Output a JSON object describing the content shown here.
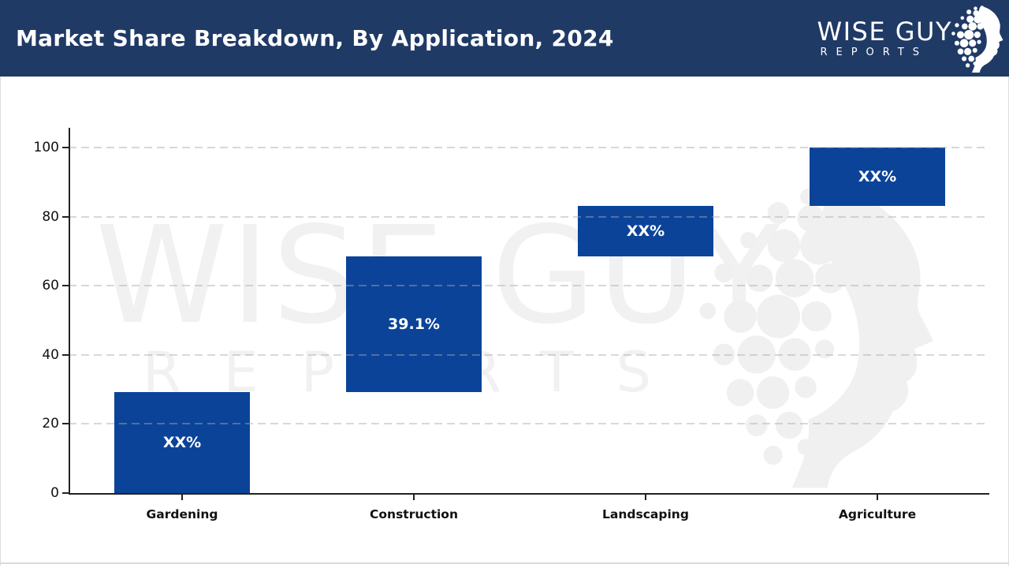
{
  "header": {
    "title": "Market Share Breakdown, By Application, 2024",
    "bg_color": "#203a66",
    "logo": {
      "line1": "WISE GUY",
      "line2": "REPORTS"
    }
  },
  "watermark": {
    "line1": "WISE GUY",
    "line2": "REPORTS"
  },
  "chart_data": {
    "type": "bar",
    "subtype": "stacked-waterfall",
    "title": "Market Share Breakdown, By Application, 2024",
    "categories": [
      "Gardening",
      "Construction",
      "Landscaping",
      "Agriculture"
    ],
    "segments": [
      {
        "category": "Gardening",
        "start": 0,
        "end": 29.3,
        "label": "XX%"
      },
      {
        "category": "Construction",
        "start": 29.3,
        "end": 68.4,
        "label": "39.1%"
      },
      {
        "category": "Landscaping",
        "start": 68.4,
        "end": 83.1,
        "label": "XX%"
      },
      {
        "category": "Agriculture",
        "start": 83.1,
        "end": 100,
        "label": "XX%"
      }
    ],
    "yticks": [
      0,
      20,
      40,
      60,
      80,
      100
    ],
    "ylim": [
      0,
      105.5
    ],
    "xlabel": "",
    "ylabel": "",
    "grid": "horizontal-dashed",
    "legend": "none",
    "bar_color": "#0b4399",
    "bar_label_color": "#ffffff"
  }
}
